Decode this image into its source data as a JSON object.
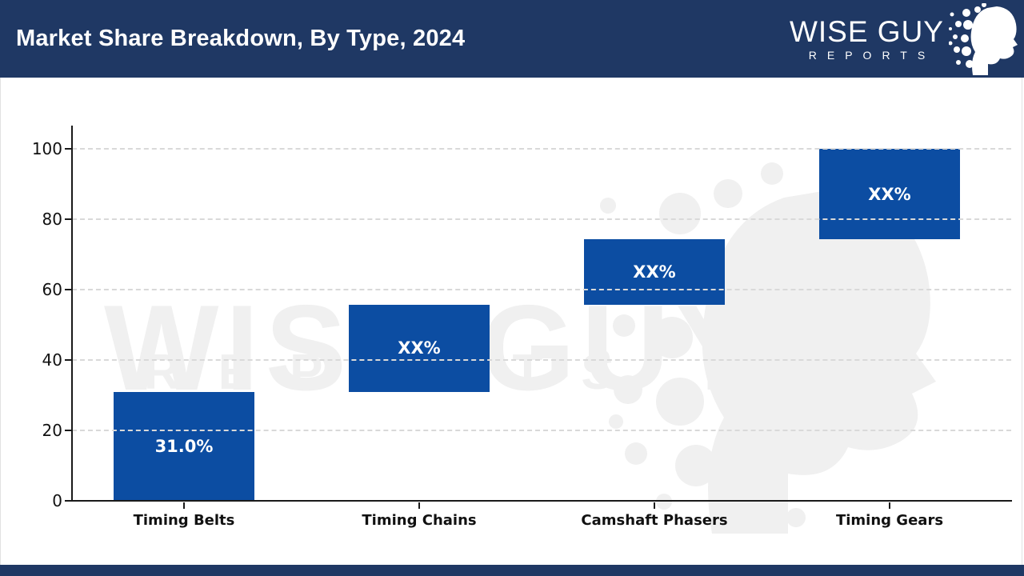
{
  "header": {
    "title": "Market Share Breakdown, By Type, 2024"
  },
  "logo": {
    "line1": "WISE GUY",
    "line2": "REPORTS"
  },
  "watermark": {
    "line1": "WISE GUY",
    "line2": "REPORTS"
  },
  "colors": {
    "header_bg": "#1f3864",
    "footer_bg": "#1f3864",
    "bar": "#0c4da2",
    "bar_label": "#ffffff",
    "grid": "#d9d9d9",
    "axis": "#1a1a1a",
    "tick_text": "#111111",
    "watermark": "#f0f0f0"
  },
  "chart_data": {
    "type": "bar",
    "subtype": "waterfall",
    "title": "Market Share Breakdown, By Type, 2024",
    "xlabel": "",
    "ylabel": "",
    "ylim": [
      0,
      100
    ],
    "yticks": [
      0,
      20,
      40,
      60,
      80,
      100
    ],
    "grid": "horizontal-dashed",
    "legend": "none",
    "categories": [
      "Timing Belts",
      "Timing Chains",
      "Camshaft Phasers",
      "Timing Gears"
    ],
    "segments": [
      {
        "category": "Timing Belts",
        "start": 0.0,
        "end": 31.0,
        "label": "31.0%"
      },
      {
        "category": "Timing Chains",
        "start": 31.0,
        "end": 55.7,
        "label": "XX%"
      },
      {
        "category": "Camshaft Phasers",
        "start": 55.7,
        "end": 74.3,
        "label": "XX%"
      },
      {
        "category": "Timing Gears",
        "start": 74.3,
        "end": 100.0,
        "label": "XX%"
      }
    ]
  }
}
